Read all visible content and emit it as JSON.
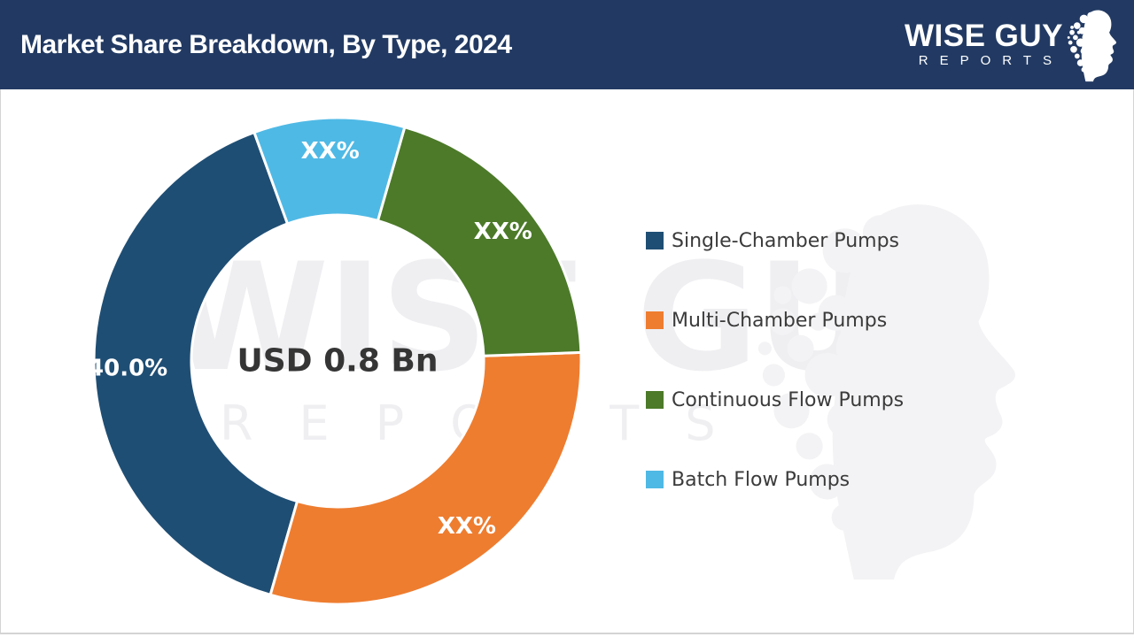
{
  "header": {
    "title": "Market Share Breakdown, By Type, 2024"
  },
  "logo": {
    "brand": "WISE GUY",
    "sub": "REPORTS"
  },
  "watermark": {
    "brand": "WISE GUY",
    "sub": "REPORTS"
  },
  "chart_data": {
    "type": "pie",
    "subtype": "donut",
    "title": "Market Share Breakdown, By Type, 2024",
    "center_label": "USD 0.8 Bn",
    "start_angle": 110,
    "direction": "counterclockwise",
    "donut_hole_ratio": 0.6,
    "legend_position": "right",
    "series": [
      {
        "name": "Single-Chamber Pumps",
        "value": 40,
        "label": "40.0%",
        "color": "#1F4E74"
      },
      {
        "name": "Multi-Chamber Pumps",
        "value": 30,
        "label": "XX%",
        "color": "#EE7D30"
      },
      {
        "name": "Continuous Flow Pumps",
        "value": 20,
        "label": "XX%",
        "color": "#4C7A29"
      },
      {
        "name": "Batch Flow Pumps",
        "value": 10,
        "label": "XX%",
        "color": "#4FB9E5"
      }
    ]
  },
  "colors": {
    "header_bg": "#223A63",
    "wedge_gap": "#FFFFFF",
    "legend_text": "#3B3B3B",
    "center_text": "#353535",
    "watermark": "#EFEFF2"
  }
}
